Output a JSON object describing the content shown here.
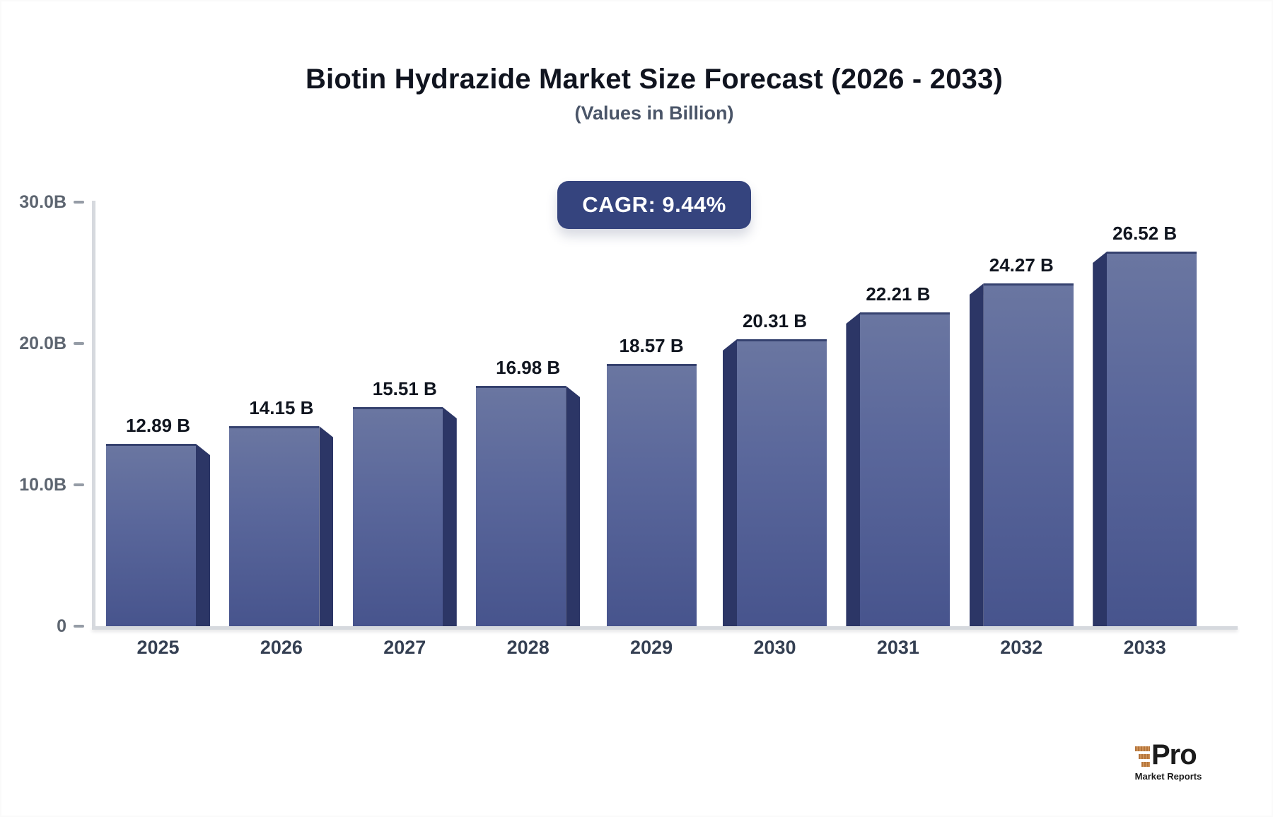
{
  "header": {
    "title": "Biotin Hydrazide Market Size Forecast (2026 - 2033)",
    "subtitle": "(Values in Billion)",
    "cagr_label": "CAGR: 9.44%"
  },
  "chart_data": {
    "type": "bar",
    "title": "Biotin Hydrazide Market Size Forecast (2026 - 2033)",
    "subtitle": "(Values in Billion)",
    "cagr_percent": 9.44,
    "unit": "B",
    "categories": [
      "2025",
      "2026",
      "2027",
      "2028",
      "2029",
      "2030",
      "2031",
      "2032",
      "2033"
    ],
    "values": [
      12.89,
      14.15,
      15.51,
      16.98,
      18.57,
      20.31,
      22.21,
      24.27,
      26.52
    ],
    "value_labels": [
      "12.89 B",
      "14.15 B",
      "15.51 B",
      "16.98 B",
      "18.57 B",
      "20.31 B",
      "22.21 B",
      "24.27 B",
      "26.52 B"
    ],
    "xlabel": "",
    "ylabel": "",
    "ylim": [
      0,
      30
    ],
    "yticks": [
      {
        "value": 0,
        "label": "0"
      },
      {
        "value": 10,
        "label": "10.0B"
      },
      {
        "value": 20,
        "label": "20.0B"
      },
      {
        "value": 30,
        "label": "30.0B"
      }
    ],
    "grid": false,
    "legend": false
  },
  "colors": {
    "bar_face_top": "#6a76a1",
    "bar_face_bottom": "#47548d",
    "bar_side": "#2c3666",
    "bar_top_edge": "#36426f",
    "badge_bg": "#35447e",
    "badge_text": "#ffffff",
    "axis_line": "#d6d9de",
    "tick_text": "#5d6570",
    "year_text": "#343f52",
    "value_text": "#10151f",
    "title_text": "#10141f",
    "subtitle_text": "#4a5568",
    "logo_accent": "#c08449",
    "logo_text": "#1b1b1b"
  },
  "logo": {
    "name": "Pro",
    "tagline": "Market Reports"
  }
}
